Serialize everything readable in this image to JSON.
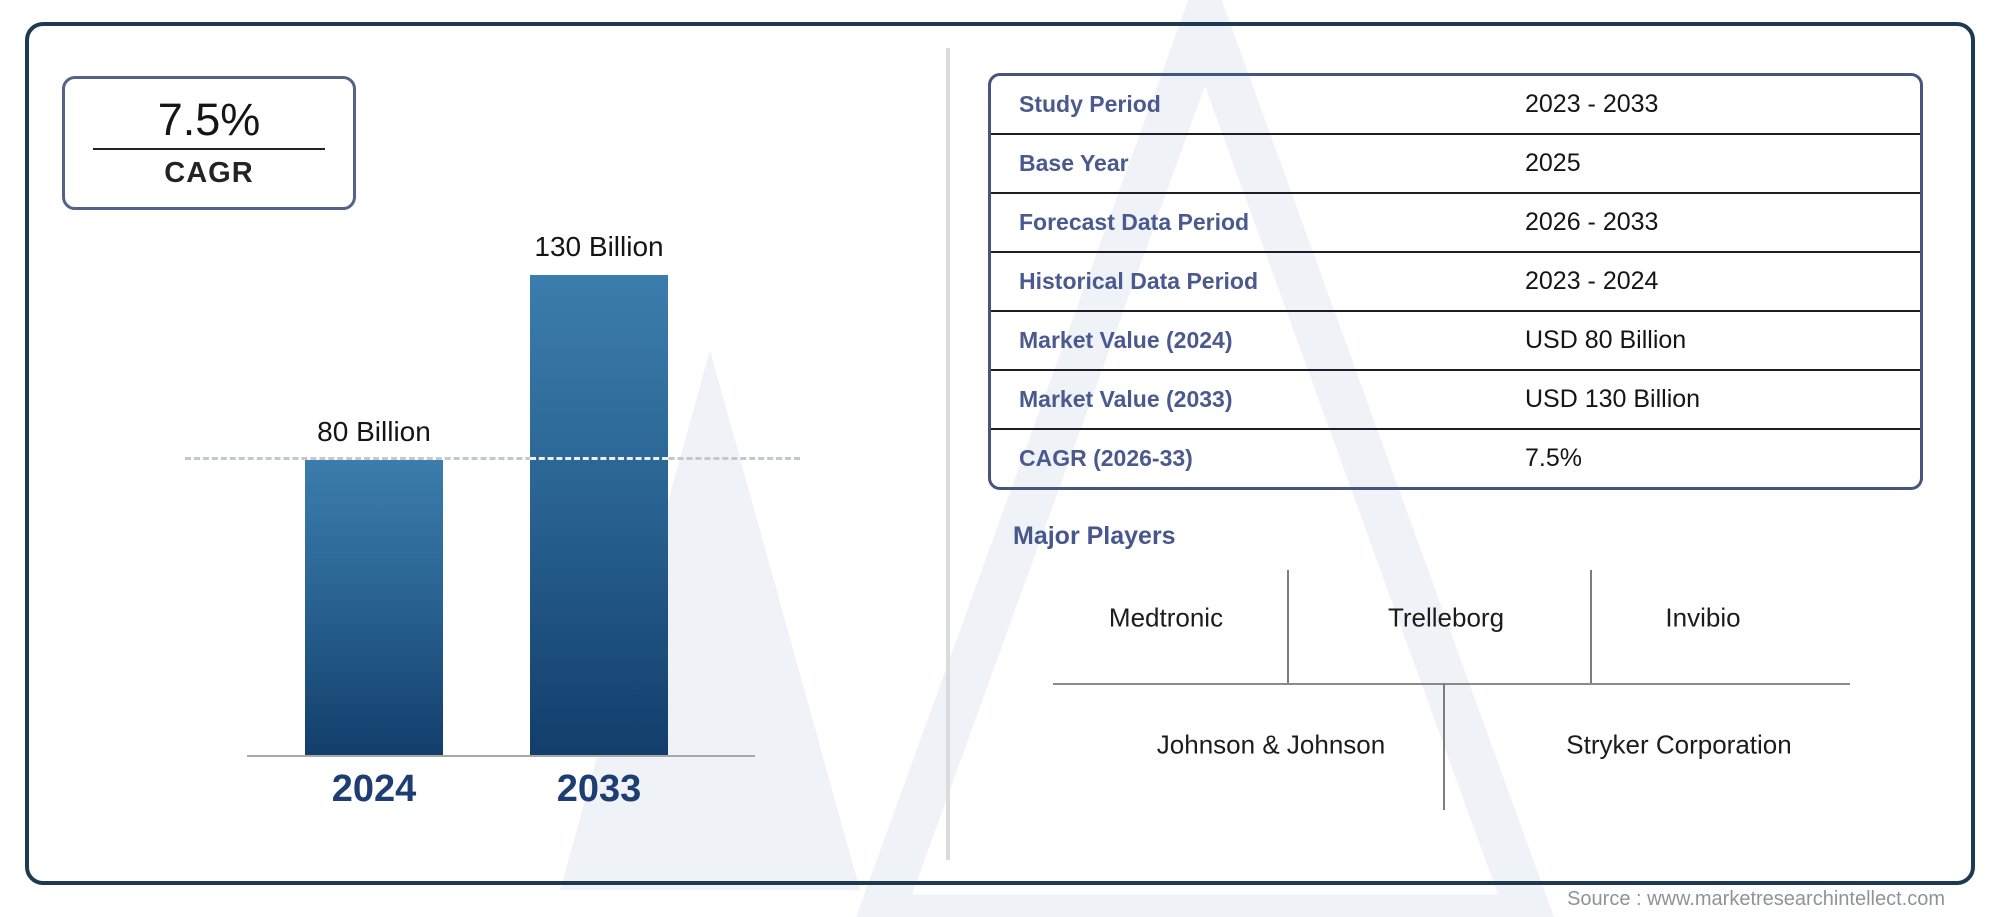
{
  "cagr_badge": {
    "value": "7.5%",
    "label": "CAGR"
  },
  "chart_data": {
    "type": "bar",
    "title": "",
    "categories": [
      "2024",
      "2033"
    ],
    "values": [
      80,
      130
    ],
    "value_labels": [
      "80 Billion",
      "130 Billion"
    ],
    "unit": "USD Billion",
    "xlabel": "",
    "ylabel": "",
    "ylim": [
      0,
      130
    ],
    "grid": false,
    "legend": "none",
    "reference_line_value": 80,
    "bar_gradient_top": "#3b7dac",
    "bar_gradient_bottom": "#123e6b"
  },
  "info_table": {
    "rows": [
      {
        "label": "Study Period",
        "value": "2023 - 2033"
      },
      {
        "label": "Base Year",
        "value": "2025"
      },
      {
        "label": "Forecast Data Period",
        "value": "2026 - 2033"
      },
      {
        "label": "Historical Data Period",
        "value": "2023 - 2024"
      },
      {
        "label": "Market Value (2024)",
        "value": "USD 80 Billion"
      },
      {
        "label": "Market Value (2033)",
        "value": "USD 130 Billion"
      },
      {
        "label": "CAGR (2026-33)",
        "value": "7.5%"
      }
    ]
  },
  "major_players": {
    "heading": "Major Players",
    "row1": [
      "Medtronic",
      "Trelleborg",
      "Invibio"
    ],
    "row2": [
      "Johnson & Johnson",
      "Stryker Corporation"
    ]
  },
  "source": {
    "text": "Source : www.marketresearchintellect.com"
  },
  "colors": {
    "frame_border": "#1d3a52",
    "table_border": "#46557f",
    "label_blue": "#4a5a8f",
    "year_label_blue": "#1e3e73",
    "watermark": "#eff3f8",
    "divider_gray": "#d9dbdd"
  }
}
